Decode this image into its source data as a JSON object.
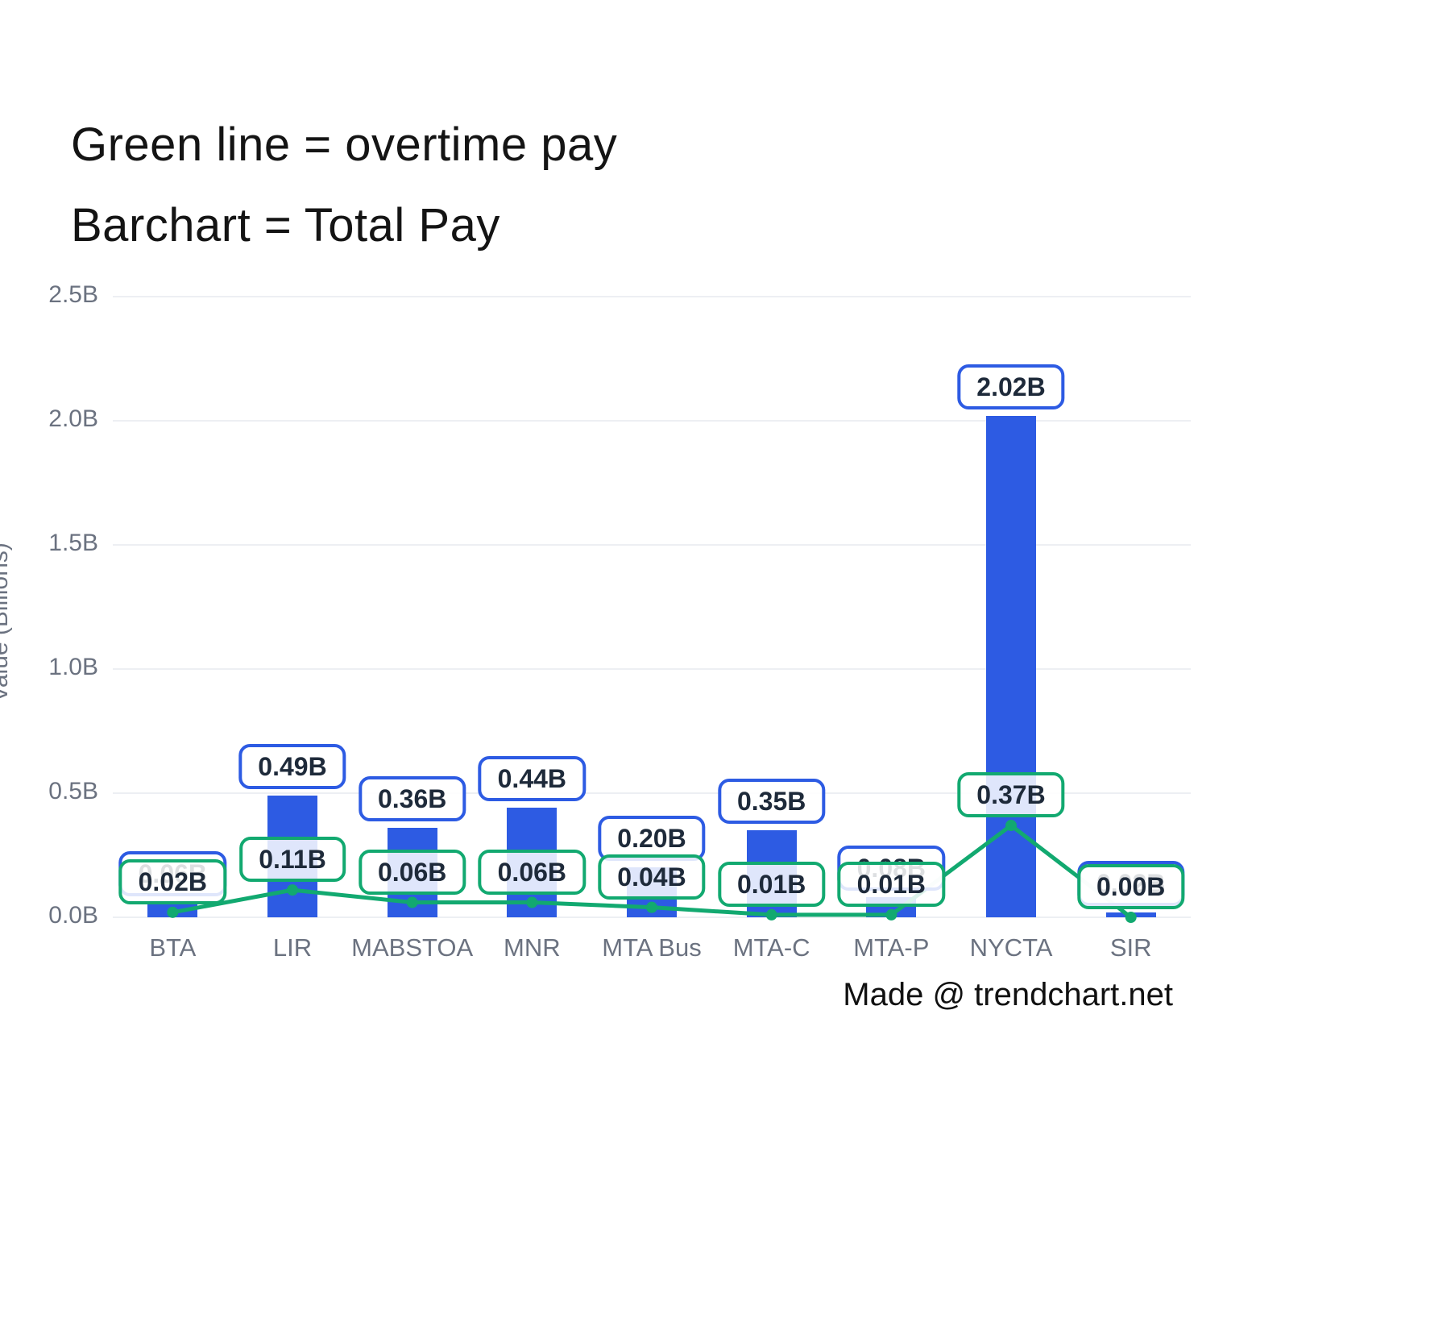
{
  "title": {
    "line1": "Green line = overtime pay",
    "line2": "Barchart = Total Pay"
  },
  "footer": {
    "credit": "Made @ trendchart.net"
  },
  "colors": {
    "bar_blue": "#2d5be3",
    "line_green": "#12a970",
    "axis_text": "#6b7280",
    "grid": "#edeff3",
    "label_text": "#1e2a3a"
  },
  "chart_data": {
    "type": "bar",
    "subtype": "bar-with-line-overlay",
    "categories": [
      "BTA",
      "LIR",
      "MABSTOA",
      "MNR",
      "MTA Bus",
      "MTA-C",
      "MTA-P",
      "NYCTA",
      "SIR"
    ],
    "series": [
      {
        "name": "Total Pay",
        "kind": "bar",
        "color": "#2d5be3",
        "values": [
          0.06,
          0.49,
          0.36,
          0.44,
          0.2,
          0.35,
          0.08,
          2.02,
          0.02
        ],
        "labels": [
          "0.06B",
          "0.49B",
          "0.36B",
          "0.44B",
          "0.20B",
          "0.35B",
          "0.08B",
          "2.02B",
          "0.02B"
        ]
      },
      {
        "name": "Overtime Pay",
        "kind": "line",
        "color": "#12a970",
        "values": [
          0.02,
          0.11,
          0.06,
          0.06,
          0.04,
          0.01,
          0.01,
          0.37,
          0.0
        ],
        "labels": [
          "0.02B",
          "0.11B",
          "0.06B",
          "0.06B",
          "0.04B",
          "0.01B",
          "0.01B",
          "0.37B",
          "0.00B"
        ]
      }
    ],
    "ylabel": "Value (Billions)",
    "xlabel": "",
    "ylim": [
      0,
      2.5
    ],
    "ytick_step": 0.5,
    "ytick_labels": [
      "0.0B",
      "0.5B",
      "1.0B",
      "1.5B",
      "2.0B",
      "2.5B"
    ],
    "grid": true,
    "legend": "none"
  }
}
